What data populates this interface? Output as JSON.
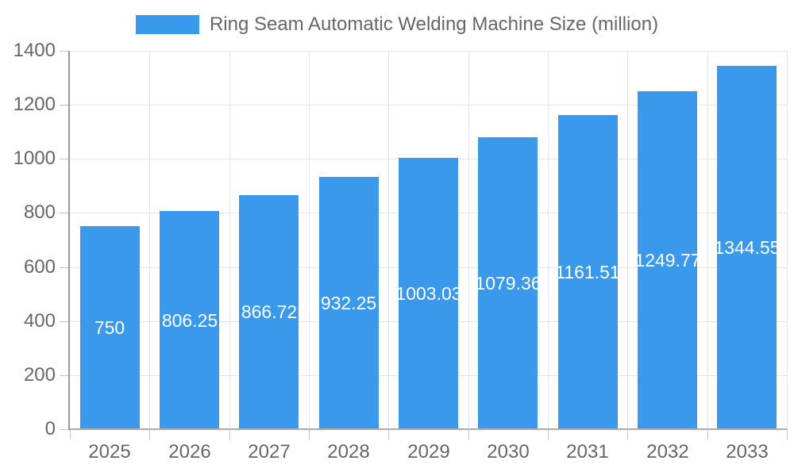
{
  "chart_data": {
    "type": "bar",
    "title": "",
    "legend_label": "Ring Seam Automatic Welding Machine Size (million)",
    "legend_position": "top-center",
    "categories": [
      "2025",
      "2026",
      "2027",
      "2028",
      "2029",
      "2030",
      "2031",
      "2032",
      "2033"
    ],
    "series": [
      {
        "name": "Ring Seam Automatic Welding Machine Size (million)",
        "values": [
          750,
          806.25,
          866.72,
          932.25,
          1003.03,
          1079.36,
          1161.51,
          1249.77,
          1344.55
        ]
      }
    ],
    "value_labels": [
      "750",
      "806.25",
      "866.72",
      "932.25",
      "1003.03",
      "1079.36",
      "1161.51",
      "1249.77",
      "1344.55"
    ],
    "xlabel": "",
    "ylabel": "",
    "y_ticks": [
      0,
      200,
      400,
      600,
      800,
      1000,
      1200,
      1400
    ],
    "ylim": [
      0,
      1400
    ],
    "grid": true,
    "colors": {
      "bar": "#3B99EC",
      "bar_label_text": "#FFFFFF",
      "axis_text": "#666666",
      "gridline": "#E5E5E5",
      "y_axis_line": "#999999",
      "x_axis_line": "#ABABAB",
      "tick_mark": "#C4C4C4",
      "background": "#FFFFFF"
    }
  }
}
